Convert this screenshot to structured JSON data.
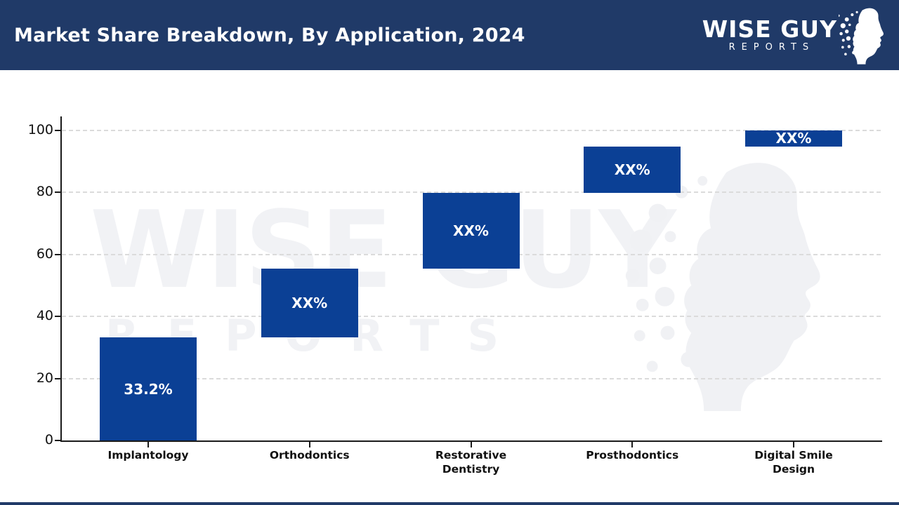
{
  "header": {
    "title": "Market Share Breakdown, By Application, 2024",
    "logo": {
      "line1": "WISE GUY",
      "line2": "REPORTS"
    }
  },
  "watermark": {
    "line1": "WISE GUY",
    "line2": "REPORTS"
  },
  "colors": {
    "header_bg": "#203A68",
    "bar": "#0B4095",
    "bar_label": "#FFFFFF",
    "axis": "#1A1A1A",
    "gridline": "#DBDBDB",
    "watermark": "#F1F2F5"
  },
  "chart_data": {
    "type": "bar",
    "subtype": "waterfall",
    "title": "Market Share Breakdown, By Application, 2024",
    "xlabel": "",
    "ylabel": "",
    "ylim": [
      0,
      100
    ],
    "yticks": [
      0,
      20,
      40,
      60,
      80,
      100
    ],
    "grid": "dashed-horizontal",
    "legend": "none",
    "categories": [
      "Implantology",
      "Orthodontics",
      "Restorative Dentistry",
      "Prosthodontics",
      "Digital Smile Design"
    ],
    "categories_display": [
      "Implantology",
      "Orthodontics",
      "Restorative\nDentistry",
      "Prosthodontics",
      "Digital Smile\nDesign"
    ],
    "segments": [
      {
        "category": "Implantology",
        "start": 0,
        "end": 33.2,
        "label": "33.2%"
      },
      {
        "category": "Orthodontics",
        "start": 33.2,
        "end": 55.5,
        "label": "XX%"
      },
      {
        "category": "Restorative Dentistry",
        "start": 55.5,
        "end": 79.8,
        "label": "XX%"
      },
      {
        "category": "Prosthodontics",
        "start": 79.8,
        "end": 94.8,
        "label": "XX%"
      },
      {
        "category": "Digital Smile Design",
        "start": 94.8,
        "end": 100,
        "label": "XX%"
      }
    ]
  }
}
